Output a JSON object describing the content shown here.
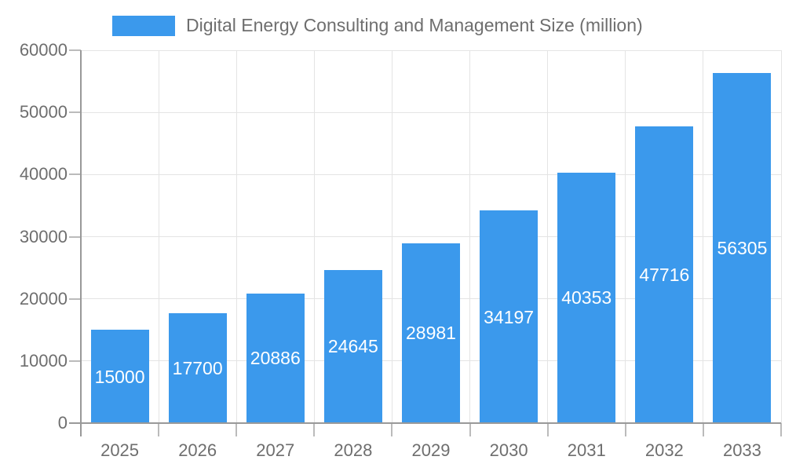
{
  "legend": {
    "position": "top",
    "items": [
      {
        "label": "Digital Energy Consulting and Management Size (million)"
      }
    ]
  },
  "colors": {
    "bar": "#3B99EC",
    "grid": "#E4E4E4",
    "tick": "#BBBBBB",
    "axis": "#999999",
    "text": "#6E6E6E",
    "bar_label": "#FFFFFF",
    "background": "#FFFFFF"
  },
  "chart_data": {
    "type": "bar",
    "title": "Digital Energy Consulting and Management Size (million)",
    "categories": [
      "2025",
      "2026",
      "2027",
      "2028",
      "2029",
      "2030",
      "2031",
      "2032",
      "2033"
    ],
    "values": [
      15000,
      17700,
      20886,
      24645,
      28981,
      34197,
      40353,
      47716,
      56305
    ],
    "xlabel": "",
    "ylabel": "",
    "ylim": [
      0,
      60000
    ],
    "y_ticks": [
      0,
      10000,
      20000,
      30000,
      40000,
      50000,
      60000
    ],
    "grid": true,
    "legend_position": "top",
    "bar_labels_inside": true
  }
}
